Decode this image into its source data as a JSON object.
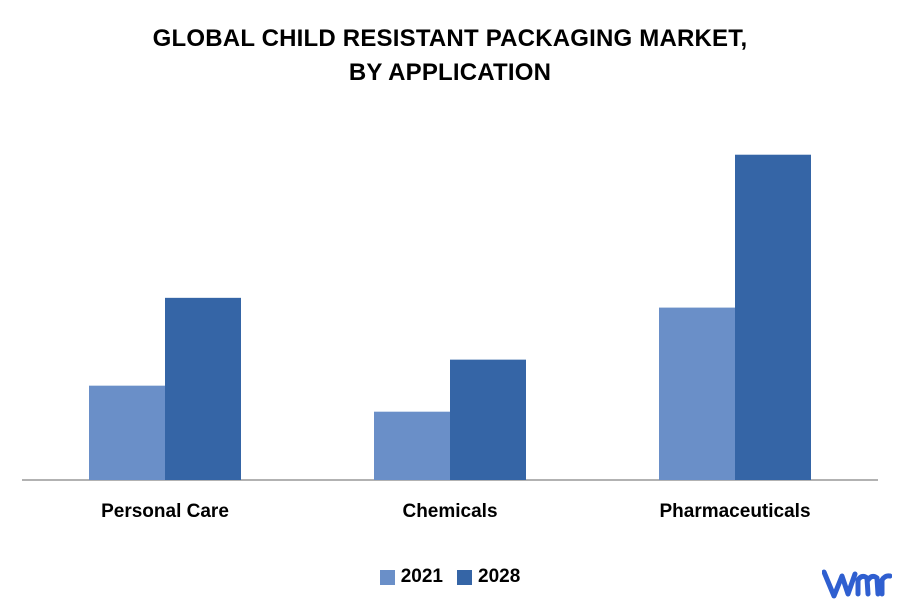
{
  "chart_data": {
    "type": "bar",
    "title": [
      "GLOBAL CHILD RESISTANT PACKAGING MARKET,",
      "BY APPLICATION"
    ],
    "categories": [
      "Personal Care",
      "Chemicals",
      "Pharmaceuticals"
    ],
    "series": [
      {
        "name": "2021",
        "values": [
          29,
          21,
          53
        ],
        "color": "#6a8fc8"
      },
      {
        "name": "2028",
        "values": [
          56,
          37,
          100
        ],
        "color": "#3565a6"
      }
    ],
    "ylim": [
      0,
      110
    ],
    "grid": false,
    "legend": "bottom-center"
  },
  "logo": {
    "name": "vmr-logo",
    "color": "#2f5fd0"
  }
}
